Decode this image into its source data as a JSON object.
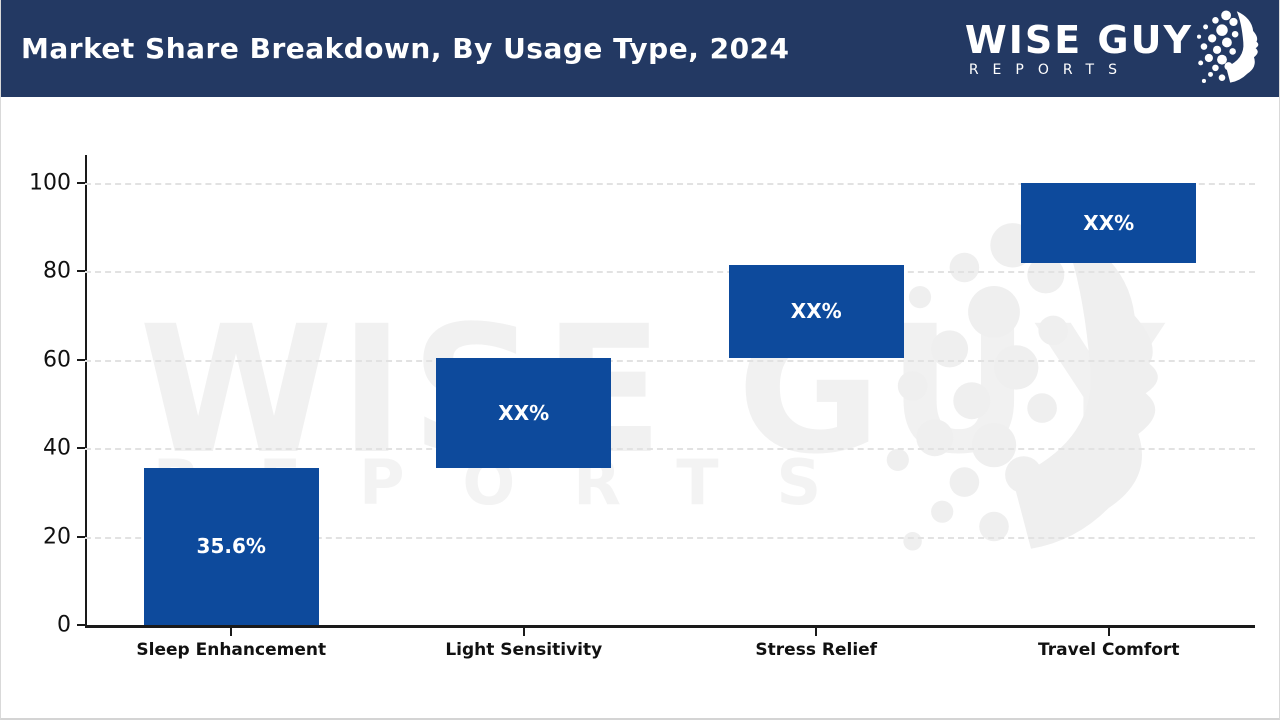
{
  "header": {
    "title": "Market Share Breakdown, By Usage Type, 2024",
    "logo": {
      "line1": "WISE GUY",
      "line2": "REPORTS"
    }
  },
  "watermark": {
    "line1": "WISE GUY",
    "line2": "REPORTS"
  },
  "chart_data": {
    "type": "bar",
    "subtype": "waterfall-floating-bars",
    "title": "Market Share Breakdown, By Usage Type, 2024",
    "xlabel": "",
    "ylabel": "",
    "categories": [
      "Sleep Enhancement",
      "Light Sensitivity",
      "Stress Relief",
      "Travel Comfort"
    ],
    "bars": [
      {
        "category": "Sleep Enhancement",
        "start": 0,
        "end": 35.6,
        "label": "35.6%"
      },
      {
        "category": "Light Sensitivity",
        "start": 35.6,
        "end": 60.5,
        "label": "XX%"
      },
      {
        "category": "Stress Relief",
        "start": 60.5,
        "end": 81.5,
        "label": "XX%"
      },
      {
        "category": "Travel Comfort",
        "start": 81.8,
        "end": 100,
        "label": "XX%"
      }
    ],
    "yticks": [
      0,
      20,
      40,
      60,
      80,
      100
    ],
    "ylim": [
      0,
      107
    ],
    "grid": "horizontal-dashed",
    "legend": "none",
    "bar_color": "#0d4a9c",
    "bar_label_color": "#ffffff"
  },
  "colors": {
    "header_navy": "#233963",
    "bar_blue": "#0d4a9c",
    "gridline": "#e2e2e2",
    "axis": "#1a1a1a",
    "watermark": "#f1f1f1"
  }
}
